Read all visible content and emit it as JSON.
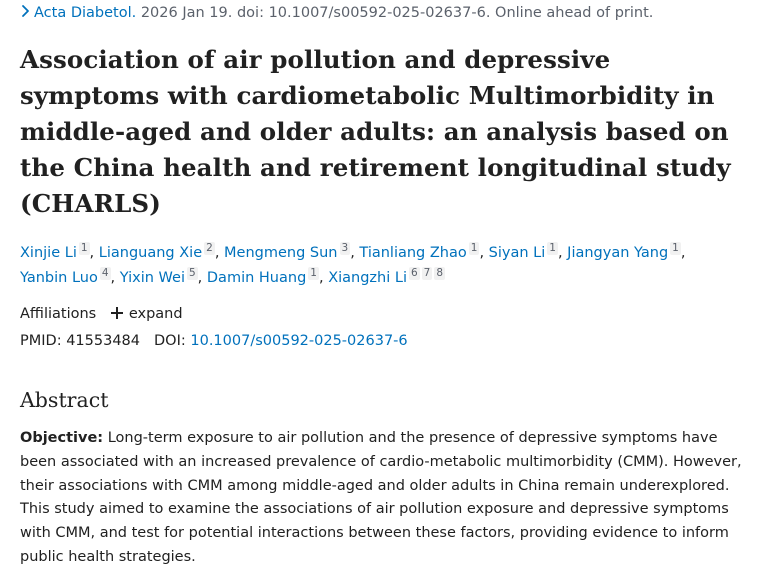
{
  "citation": {
    "journal": "Acta Diabetol.",
    "details": "2026 Jan 19. doi: 10.1007/s00592-025-02637-6. Online ahead of print."
  },
  "title": "Association of air pollution and depressive symptoms with cardiometabolic Multimorbidity in middle-aged and older adults: an analysis based on the China health and retirement longitudinal study (CHARLS)",
  "authors": [
    {
      "name": "Xinjie Li",
      "affs": [
        "1"
      ]
    },
    {
      "name": "Lianguang Xie",
      "affs": [
        "2"
      ]
    },
    {
      "name": "Mengmeng Sun",
      "affs": [
        "3"
      ]
    },
    {
      "name": "Tianliang Zhao",
      "affs": [
        "1"
      ]
    },
    {
      "name": "Siyan Li",
      "affs": [
        "1"
      ]
    },
    {
      "name": "Jiangyan Yang",
      "affs": [
        "1"
      ]
    },
    {
      "name": "Yanbin Luo",
      "affs": [
        "4"
      ]
    },
    {
      "name": "Yixin Wei",
      "affs": [
        "5"
      ]
    },
    {
      "name": "Damin Huang",
      "affs": [
        "1"
      ]
    },
    {
      "name": "Xiangzhi Li",
      "affs": [
        "6",
        "7",
        "8"
      ]
    }
  ],
  "affiliations": {
    "label": "Affiliations",
    "expand_label": "expand"
  },
  "identifiers": {
    "pmid_label": "PMID:",
    "pmid": "41553484",
    "doi_label": "DOI:",
    "doi": "10.1007/s00592-025-02637-6"
  },
  "abstract": {
    "heading": "Abstract",
    "objective_label": "Objective:",
    "objective_text": "Long-term exposure to air pollution and the presence of depressive symptoms have been associated with an increased prevalence of cardio-metabolic multimorbidity (CMM). However, their associations with CMM among middle-aged and older adults in China remain underexplored. This study aimed to examine the associations of air pollution exposure and depressive symptoms with CMM, and test for potential interactions between these factors, providing evidence to inform public health strategies."
  },
  "colors": {
    "link": "#0071bc",
    "text": "#212121",
    "muted": "#5b616b"
  }
}
